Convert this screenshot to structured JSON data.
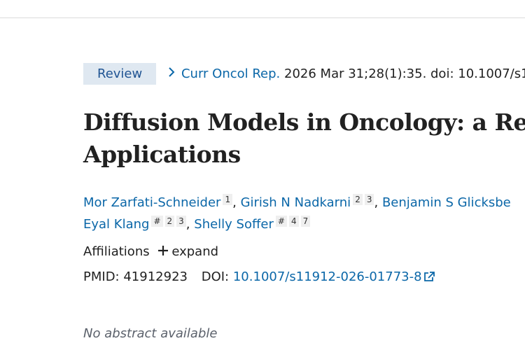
{
  "header": {
    "badge": "Review",
    "journal": "Curr Oncol Rep.",
    "citation": "2026 Mar 31;28(1):35. doi: 10.1007/s1"
  },
  "title": {
    "lines": [
      "Diffusion Models in Oncology: a Rev",
      "Applications"
    ]
  },
  "authors": {
    "separator": ",",
    "lines": [
      [
        {
          "name": "Mor Zarfati-Schneider",
          "sups": [
            "1"
          ]
        },
        {
          "name": "Girish N Nadkarni",
          "sups": [
            "2",
            "3"
          ]
        },
        {
          "name": "Benjamin S Glicksbe",
          "sups": []
        }
      ],
      [
        {
          "name": "Eyal Klang",
          "sups": [
            "#",
            "2",
            "3"
          ]
        },
        {
          "name": "Shelly Soffer",
          "sups": [
            "#",
            "4",
            "7"
          ]
        }
      ]
    ]
  },
  "affiliations": {
    "label": "Affiliations",
    "toggle": "expand"
  },
  "ids": {
    "pmid_label": "PMID:",
    "pmid": "41912923",
    "doi_label": "DOI:",
    "doi": "10.1007/s11912-026-01773-8"
  },
  "abstract": {
    "note": "No abstract available"
  }
}
